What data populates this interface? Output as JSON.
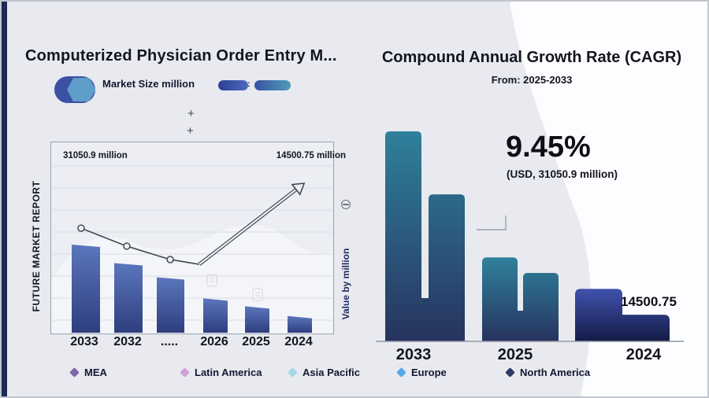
{
  "colors": {
    "background": "#e8eaf0",
    "frame_strip": "#1d2a56",
    "panel_bg": "#eceef4",
    "panel_border": "#9aa0ac",
    "bar_top": "#5b76bd",
    "bar_bottom": "#2e3e7e",
    "teal_top": "#2f819b",
    "teal_bottom": "#27335f",
    "indigo_top": "#4152ae",
    "indigo_bottom": "#131b45",
    "line": "#454a55",
    "ink": "#14151f",
    "logo_blue": "#3b51a3",
    "logo_light": "#5e9ec9",
    "pill_dark": "#2c3e92",
    "pill_mid": "#4d6cc0",
    "pill_teal": "#4f9dbb",
    "white_wedge": "#fcfdfe"
  },
  "icons": {
    "brand_logo": "capsule-hexagon-logo",
    "plus": "plus-mark",
    "minus_circle": "circle-minus",
    "trend_arrow": "arrow-up-right",
    "legend_marker": "diamond",
    "ghost": "clipboard-watermark"
  },
  "header_left": {
    "title": "Computerized Physician Order Entry  M...",
    "logo_label": "Market Size million",
    "separator": ":"
  },
  "header_right": {
    "title": "Compound Annual Growth Rate (CAGR)",
    "subtitle": "From: 2025-2033"
  },
  "decor": {
    "plus1": "+",
    "plus2": "+"
  },
  "left_panel": {
    "annotation_left": "31050.9 million",
    "annotation_right": "14500.75 million",
    "side_text": "FUTURE MARKET REPORT",
    "ylabel": "Value by million"
  },
  "right_panel": {
    "cagr_value": "9.45%",
    "cagr_note": "(USD, 31050.9 million)",
    "value_label": "14500.75"
  },
  "legend": {
    "position": "bottom",
    "items": [
      {
        "label": "MEA",
        "color": "#7e66ae"
      },
      {
        "label": "Latin America",
        "color": "#cfa3da"
      },
      {
        "label": "Asia Pacific",
        "color": "#a7d6e4"
      },
      {
        "label": "Europe",
        "color": "#53a9ea"
      },
      {
        "label": "North America",
        "color": "#2c3a69"
      }
    ]
  },
  "chart_data": [
    {
      "type": "bar",
      "title": "Market Size million",
      "categories": [
        "2033",
        "2032",
        ".....",
        "2026",
        "2025",
        "2024"
      ],
      "values": [
        100,
        79,
        63,
        39,
        30,
        19
      ],
      "value_note": "relative heights; axis unlabeled, annotated 31050.9 million (2033) and 14500.75 million (2024)",
      "annotations": [
        "31050.9 million",
        "14500.75 million"
      ],
      "ylabel": "Value by million",
      "grid": true,
      "trend_line": {
        "points": [
          [
            0.106,
            0.449
          ],
          [
            0.268,
            0.543
          ],
          [
            0.422,
            0.613
          ],
          [
            0.525,
            0.638
          ]
        ],
        "arrow_end": [
          0.897,
          0.214
        ]
      }
    },
    {
      "type": "grouped-bar",
      "title": "Compound Annual Growth Rate (CAGR)",
      "subtitle": "From: 2025-2033",
      "categories": [
        "2033",
        "2025",
        "2024"
      ],
      "series": [
        {
          "name": "series-1",
          "values": [
            100,
            40,
            25
          ]
        },
        {
          "name": "series-2",
          "values": [
            70,
            32.6,
            12.7
          ]
        }
      ],
      "annotations": [
        "9.45%",
        "(USD, 31050.9 million)",
        "14500.75"
      ],
      "grid": false
    }
  ]
}
